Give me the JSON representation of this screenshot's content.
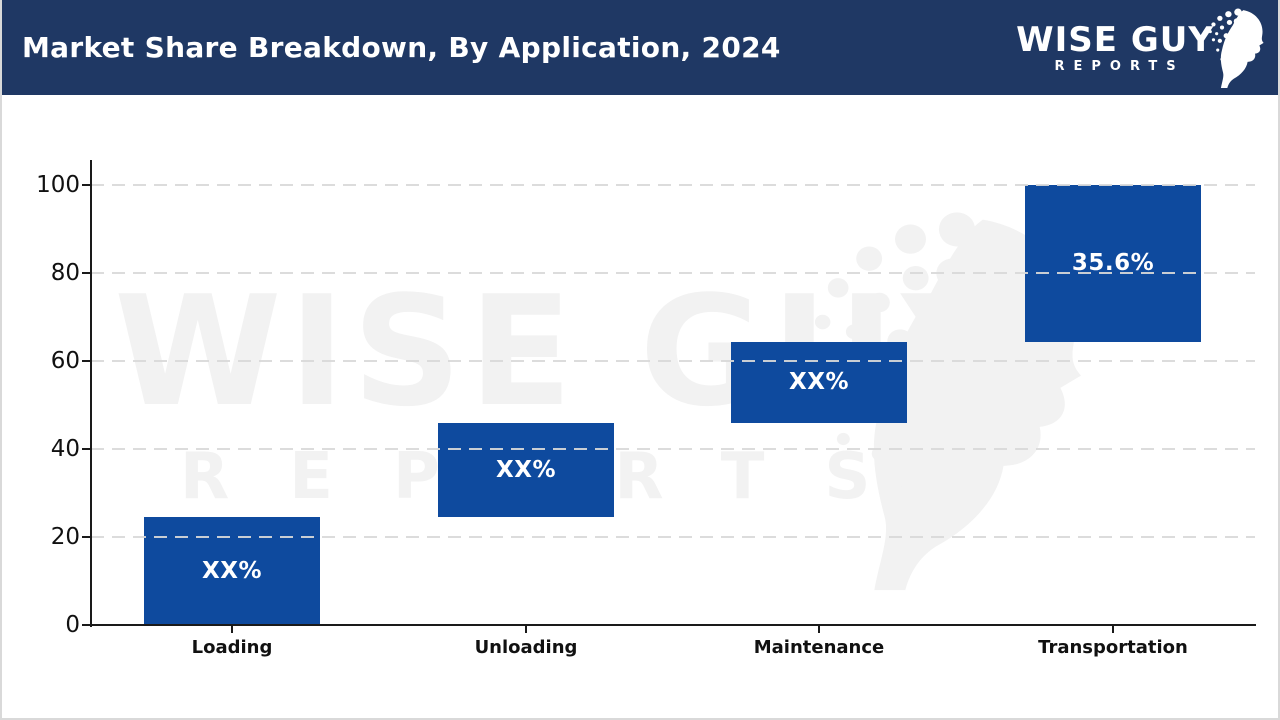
{
  "header": {
    "title": "Market Share Breakdown, By Application, 2024",
    "logo": {
      "line1": "WISE GUY",
      "line2": "REPORTS"
    }
  },
  "watermark": {
    "line1": "WISE GUY",
    "line2": "REPORTS"
  },
  "colors": {
    "header_bg": "#1f3864",
    "bar_blue": "#0e4a9e",
    "grid_gray": "#d9d9d9",
    "axis_black": "#1a1a1a",
    "watermark_gray": "#f2f2f2"
  },
  "chart_data": {
    "type": "bar",
    "variant": "floating-waterfall",
    "title": "Market Share Breakdown, By Application, 2024",
    "xlabel": "",
    "ylabel": "",
    "categories": [
      "Loading",
      "Unloading",
      "Maintenance",
      "Transportation"
    ],
    "segments": [
      {
        "category": "Loading",
        "start": 0,
        "end": 24.5,
        "label": "XX%"
      },
      {
        "category": "Unloading",
        "start": 24.5,
        "end": 46.0,
        "label": "XX%"
      },
      {
        "category": "Maintenance",
        "start": 46.0,
        "end": 64.4,
        "label": "XX%"
      },
      {
        "category": "Transportation",
        "start": 64.4,
        "end": 100,
        "label": "35.6%",
        "value": 35.6
      }
    ],
    "ylim": [
      0,
      100
    ],
    "yticks": [
      0,
      20,
      40,
      60,
      80,
      100
    ],
    "grid": "dashed-horizontal-over-bars",
    "legend": "none",
    "bar_color": "#0e4a9e",
    "bar_label_color": "#ffffff"
  }
}
